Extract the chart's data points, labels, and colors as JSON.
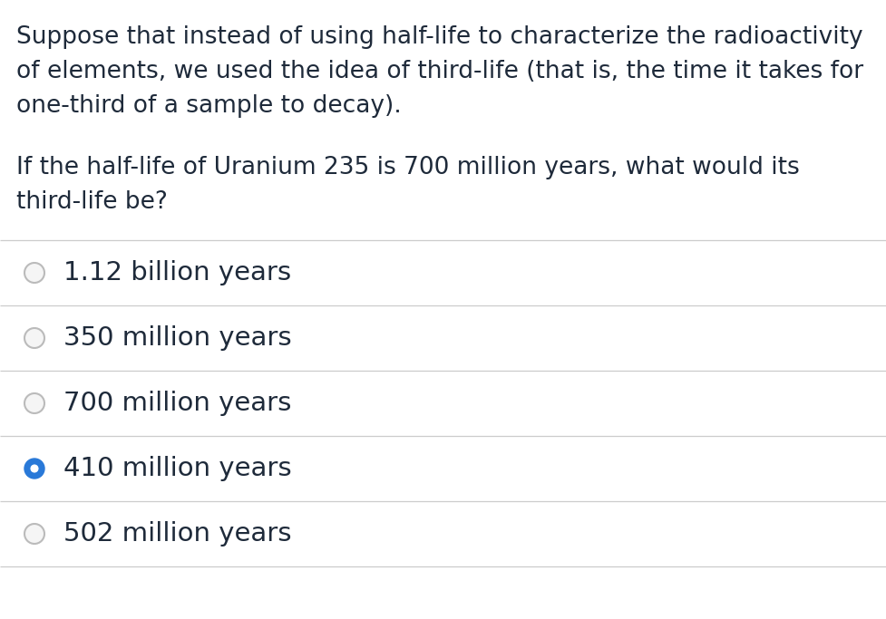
{
  "background_color": "#ffffff",
  "text_color": "#1e2a3a",
  "paragraph1_line1": "Suppose that instead of using half-life to characterize the radioactivity",
  "paragraph1_line2": "of elements, we used the idea of third-life (that is, the time it takes for",
  "paragraph1_line3": "one-third of a sample to decay).",
  "paragraph2_line1": "If the half-life of Uranium 235 is 700 million years, what would its",
  "paragraph2_line2": "third-life be?",
  "options": [
    "1.12 billion years",
    "350 million years",
    "700 million years",
    "410 million years",
    "502 million years"
  ],
  "selected_index": 3,
  "selected_color": "#2979d8",
  "unselected_edge_color": "#bbbbbb",
  "unselected_fill_color": "#f5f5f5",
  "divider_color": "#cccccc",
  "font_size_body": 19,
  "font_size_options": 21,
  "fig_width": 9.78,
  "fig_height": 6.83,
  "dpi": 100
}
